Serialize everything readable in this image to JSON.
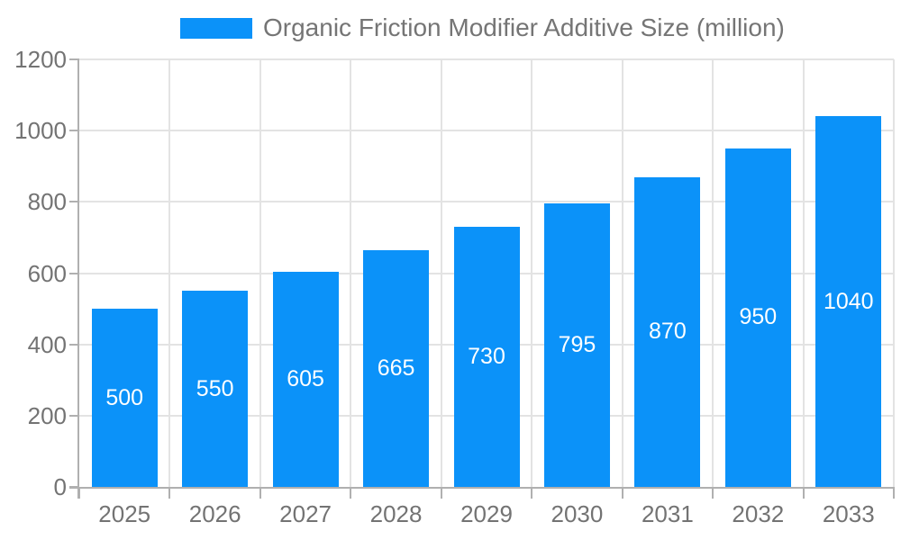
{
  "chart_data": {
    "type": "bar",
    "title": "Organic Friction Modifier Additive Size (million)",
    "categories": [
      "2025",
      "2026",
      "2027",
      "2028",
      "2029",
      "2030",
      "2031",
      "2032",
      "2033"
    ],
    "series": [
      {
        "name": "Organic Friction Modifier Additive Size (million)",
        "values": [
          500,
          550,
          605,
          665,
          730,
          795,
          870,
          950,
          1040
        ]
      }
    ],
    "xlabel": "",
    "ylabel": "",
    "ylim": [
      0,
      1200
    ],
    "yticks": [
      0,
      200,
      400,
      600,
      800,
      1000,
      1200
    ],
    "ytick_step": 200,
    "grid": true,
    "legend_position": "top",
    "value_labels": "inside-center"
  },
  "colors": {
    "bar": "#0b92f9",
    "grid": "#e3e3e3",
    "axis_line": "#b0b0b0",
    "axis_text": "#737373",
    "legend_text": "#757575",
    "value_label_text": "#ffffff",
    "background": "#ffffff"
  }
}
